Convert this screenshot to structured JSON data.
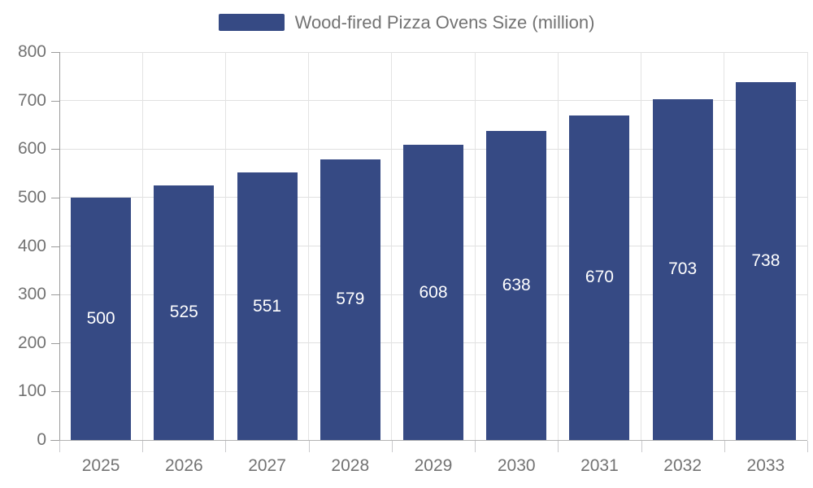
{
  "legend": {
    "label": "Wood-fired Pizza Ovens Size (million)"
  },
  "colors": {
    "bar": "#364a84",
    "axis_text": "#737373",
    "grid": "#e0e0e0",
    "y_axis_line": "#9b9b9b",
    "x_axis_line": "#b3b3b3",
    "bar_label_text": "#ffffff"
  },
  "chart_data": {
    "type": "bar",
    "title": "Wood-fired Pizza Ovens Size (million)",
    "categories": [
      "2025",
      "2026",
      "2027",
      "2028",
      "2029",
      "2030",
      "2031",
      "2032",
      "2033"
    ],
    "values": [
      500,
      525,
      551,
      579,
      608,
      638,
      670,
      703,
      738
    ],
    "xlabel": "",
    "ylabel": "",
    "ylim": [
      0,
      800
    ],
    "yticks": [
      0,
      100,
      200,
      300,
      400,
      500,
      600,
      700,
      800
    ],
    "grid": true,
    "legend_position": "top",
    "bar_labels": true,
    "bar_label_position": "center"
  }
}
